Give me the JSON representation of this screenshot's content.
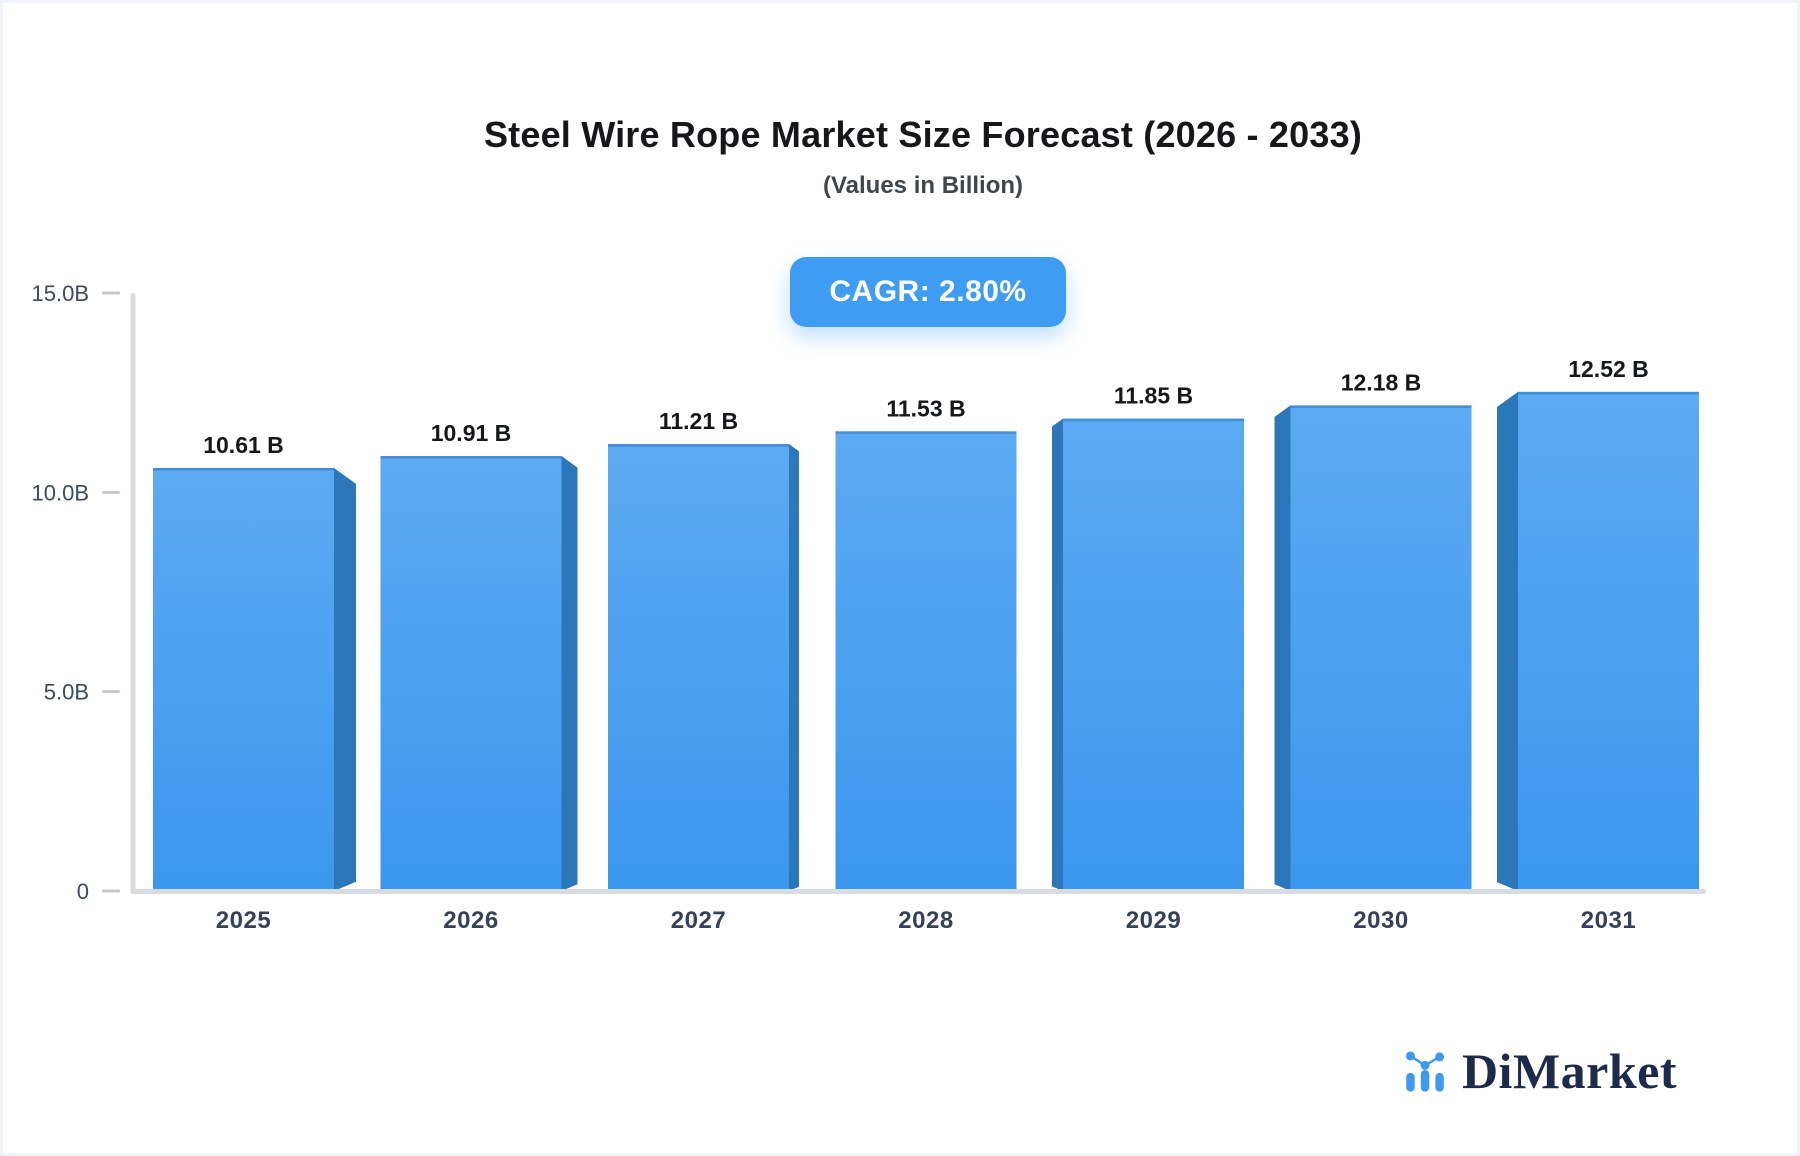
{
  "title": "Steel Wire Rope Market Size Forecast (2026 - 2033)",
  "subtitle": "(Values in Billion)",
  "badge": {
    "label": "CAGR: 2.80%"
  },
  "chart_data": {
    "type": "bar",
    "title": "Steel Wire Rope Market Size Forecast (2026 - 2033)",
    "subtitle": "(Values in Billion)",
    "cagr": "2.80%",
    "categories": [
      "2025",
      "2026",
      "2027",
      "2028",
      "2029",
      "2030",
      "2031"
    ],
    "values": [
      10.61,
      10.91,
      11.21,
      11.53,
      11.85,
      12.18,
      12.52
    ],
    "value_labels": [
      "10.61 B",
      "10.91 B",
      "11.21 B",
      "11.53 B",
      "11.85 B",
      "12.18 B",
      "12.52 B"
    ],
    "unit": "Billion",
    "xlabel": "",
    "ylabel": "",
    "ylim": [
      0,
      15
    ],
    "y_ticks": [
      {
        "value": 15,
        "label": "15.0B"
      },
      {
        "value": 10,
        "label": "10.0B"
      },
      {
        "value": 5,
        "label": "5.0B"
      },
      {
        "value": 0,
        "label": "0"
      }
    ],
    "grid": false,
    "legend": false,
    "style": "3d-perspective-bars"
  },
  "colors": {
    "accent": "#3e9cf2",
    "bar_face_top": "#5caaf3",
    "bar_face_bottom": "#3b97ef",
    "bar_top_edge": "#3c85cf",
    "bar_side": "#2c76ba",
    "axis": "#d8dce2",
    "tick": "#c3c9d2",
    "y_label": "#3c4a5e",
    "x_label": "#36425a",
    "value_label": "#14171b",
    "brand_navy": "#1c2b4b",
    "icon_blue": "#3d9af0"
  },
  "brand": {
    "name": "DiMarket",
    "icon": "mini-bar-chart-icon"
  }
}
